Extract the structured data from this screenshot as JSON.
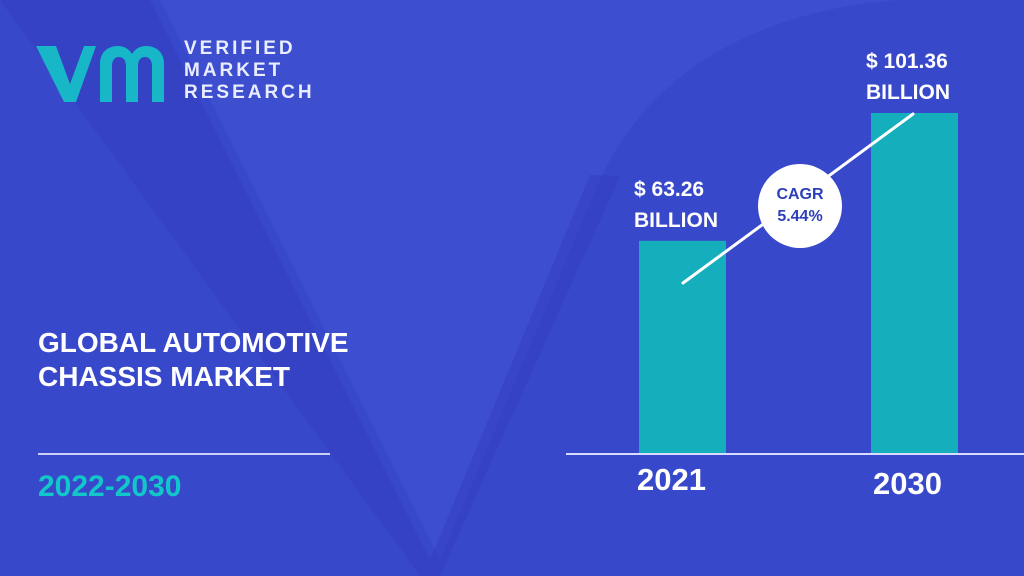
{
  "logo": {
    "line1": "VERIFIED",
    "line2": "MARKET",
    "line3": "RESEARCH"
  },
  "title": {
    "line1": "GLOBAL AUTOMOTIVE",
    "line2": "CHASSIS MARKET"
  },
  "period": "2022-2030",
  "colors": {
    "background": "#3d4ecf",
    "bar": "#14aebd",
    "accent_text": "#12c7c9",
    "logo_mark": "#17b7c8"
  },
  "chart_data": {
    "type": "bar",
    "categories": [
      "2021",
      "2030"
    ],
    "values": [
      63.26,
      101.36
    ],
    "value_labels": [
      {
        "line1": "$ 63.26",
        "line2": "BILLION"
      },
      {
        "line1": "$ 101.36",
        "line2": "BILLION"
      }
    ],
    "unit": "Billion USD",
    "cagr": {
      "line1": "CAGR",
      "line2": "5.44%"
    },
    "ylim": [
      0,
      101.36
    ],
    "grid": false,
    "legend": "none"
  }
}
